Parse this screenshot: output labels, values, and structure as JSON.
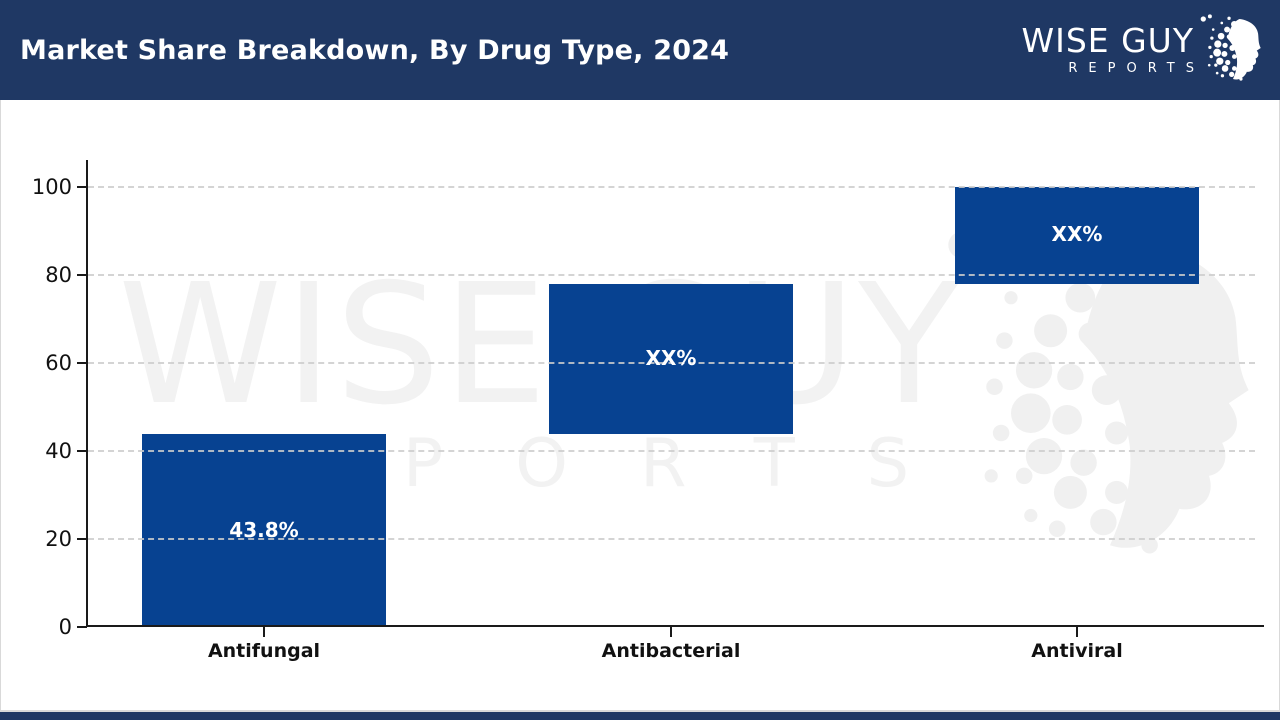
{
  "header": {
    "title": "Market Share Breakdown, By Drug Type, 2024",
    "bg_color": "#1f3864",
    "logo": {
      "line1": "WISE GUY",
      "line2": "REPORTS"
    }
  },
  "watermark": {
    "line1": "WISE GUY",
    "line2": "REPORTS"
  },
  "footer": {
    "bg_color": "#1f3864"
  },
  "chart_data": {
    "type": "bar",
    "subtype": "floating-range-bars (waterfall style)",
    "title": "Market Share Breakdown, By Drug Type, 2024",
    "categories": [
      "Antifungal",
      "Antibacterial",
      "Antiviral"
    ],
    "series": [
      {
        "name": "Market share (%)",
        "ranges": [
          [
            0,
            43.8
          ],
          [
            43.8,
            78
          ],
          [
            78,
            100
          ]
        ],
        "bar_labels": [
          "43.8%",
          "XX%",
          "XX%"
        ]
      }
    ],
    "xlabel": "",
    "ylabel": "",
    "ylim": [
      0,
      100
    ],
    "yticks": [
      0,
      20,
      40,
      60,
      80,
      100
    ],
    "grid": {
      "horizontal_dashed": true,
      "drawn_above_bars": true,
      "color": "#d0d0d0"
    },
    "bar_color": "#074291",
    "bar_label_color": "#ffffff",
    "axis_color": "#1a1a1a",
    "legend": "none"
  }
}
